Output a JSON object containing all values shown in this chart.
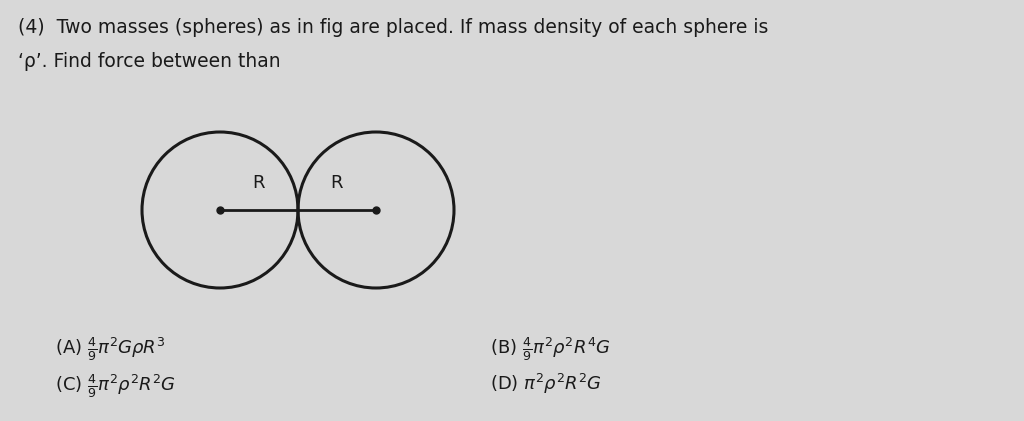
{
  "title_line1": "(4)  Two masses (spheres) as in fig are placed. If mass density of each sphere is",
  "title_line2": "‘ρ’. Find force between than",
  "bg_color": "#d8d8d8",
  "text_color": "#1a1a1a",
  "circle_color": "#1a1a1a",
  "font_size_text": 13.5,
  "font_size_options": 13,
  "font_size_labels": 13,
  "option_A": "(A) $\\frac{4}{9}\\pi^2 G\\rho R^3$",
  "option_B": "(B) $\\frac{4}{9}\\pi^2 \\rho^2 R^4 G$",
  "option_C": "(C) $\\frac{4}{9}\\pi^2 \\rho^2 R^2 G$",
  "option_D": "(D) $\\pi^2 \\rho^2 R^2 G$"
}
